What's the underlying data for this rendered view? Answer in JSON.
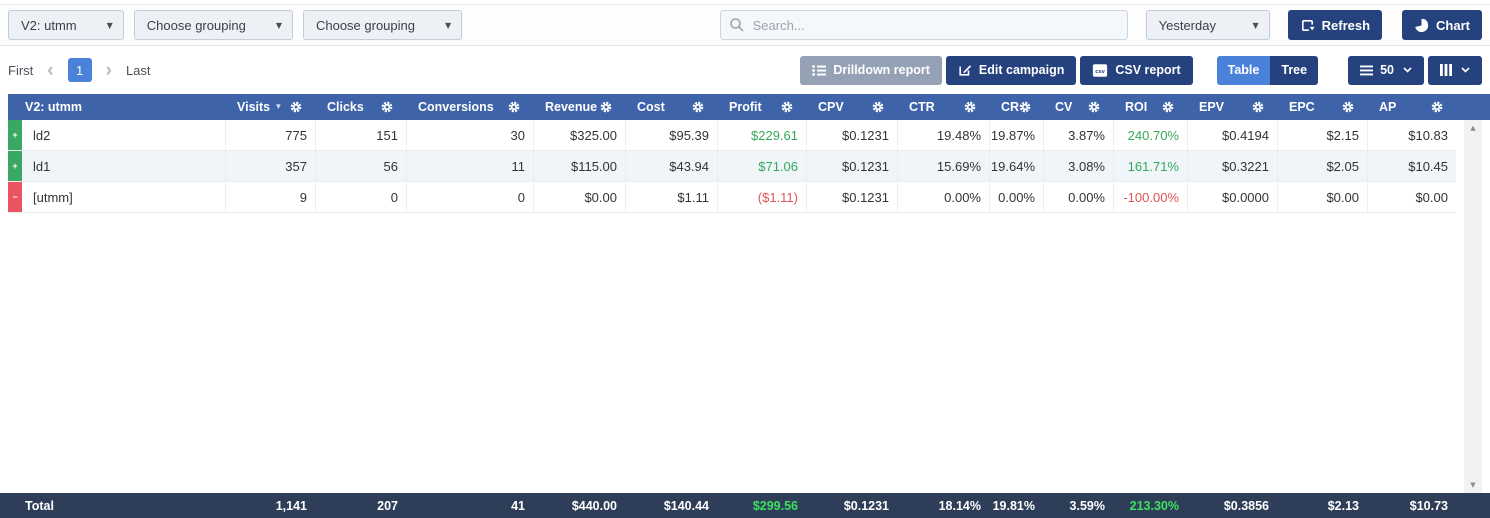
{
  "toolbar": {
    "filters": [
      {
        "label": "V2: utmm"
      },
      {
        "label": "Choose grouping"
      },
      {
        "label": "Choose grouping"
      }
    ],
    "search_placeholder": "Search...",
    "date_range": "Yesterday",
    "refresh_label": "Refresh",
    "chart_label": "Chart"
  },
  "pagination": {
    "first": "First",
    "current_page": "1",
    "last": "Last"
  },
  "actions": {
    "drilldown": "Drilldown report",
    "edit": "Edit campaign",
    "csv": "CSV report",
    "table": "Table",
    "tree": "Tree",
    "rows_per_page": "50"
  },
  "table": {
    "columns": [
      "V2: utmm",
      "Visits",
      "Clicks",
      "Conversions",
      "Revenue",
      "Cost",
      "Profit",
      "CPV",
      "CTR",
      "CR",
      "CV",
      "ROI",
      "EPV",
      "EPC",
      "AP"
    ],
    "sorted_column": "Visits",
    "rows": [
      {
        "status": "up",
        "name": "ld2",
        "values": [
          "775",
          "151",
          "30",
          "$325.00",
          "$95.39",
          "$229.61",
          "$0.1231",
          "19.48%",
          "19.87%",
          "3.87%",
          "240.70%",
          "$0.4194",
          "$2.15",
          "$10.83"
        ]
      },
      {
        "status": "up",
        "name": "ld1",
        "values": [
          "357",
          "56",
          "11",
          "$115.00",
          "$43.94",
          "$71.06",
          "$0.1231",
          "15.69%",
          "19.64%",
          "3.08%",
          "161.71%",
          "$0.3221",
          "$2.05",
          "$10.45"
        ]
      },
      {
        "status": "down",
        "name": "[utmm]",
        "values": [
          "9",
          "0",
          "0",
          "$0.00",
          "$1.11",
          "($1.11)",
          "$0.1231",
          "0.00%",
          "0.00%",
          "0.00%",
          "-100.00%",
          "$0.0000",
          "$0.00",
          "$0.00"
        ]
      }
    ],
    "total": {
      "label": "Total",
      "values": [
        "1,141",
        "207",
        "41",
        "$440.00",
        "$140.44",
        "$299.56",
        "$0.1231",
        "18.14%",
        "19.81%",
        "3.59%",
        "213.30%",
        "$0.3856",
        "$2.13",
        "$10.73"
      ]
    }
  },
  "icons": {
    "search": "magnifier",
    "refresh": "reload-square-arrow",
    "chart": "pie-chart",
    "drilldown": "bulleted-list",
    "edit": "pencil-square",
    "csv": "csv-file",
    "rows_per_page": "hamburger",
    "columns": "vertical-bars",
    "dropdown_caret": "▼",
    "sort_caret": "▾",
    "column_settings": "gear",
    "scroll_up": "▲",
    "scroll_down": "▼",
    "page_prev": "‹",
    "page_next": "›",
    "row_status_up": "+",
    "row_status_down": "−"
  },
  "colors": {
    "header_blue": "#3f63a8",
    "footer_navy": "#2f3e58",
    "button_navy": "#25427f",
    "active_blue": "#4b82d9",
    "muted_button": "#95a2b5",
    "positive_green": "#36a85a",
    "negative_red": "#e05555",
    "total_green": "#3be05f",
    "indicator_green": "#3aa764",
    "indicator_red": "#ea5460",
    "row_stripe": "#f0f5fa"
  }
}
